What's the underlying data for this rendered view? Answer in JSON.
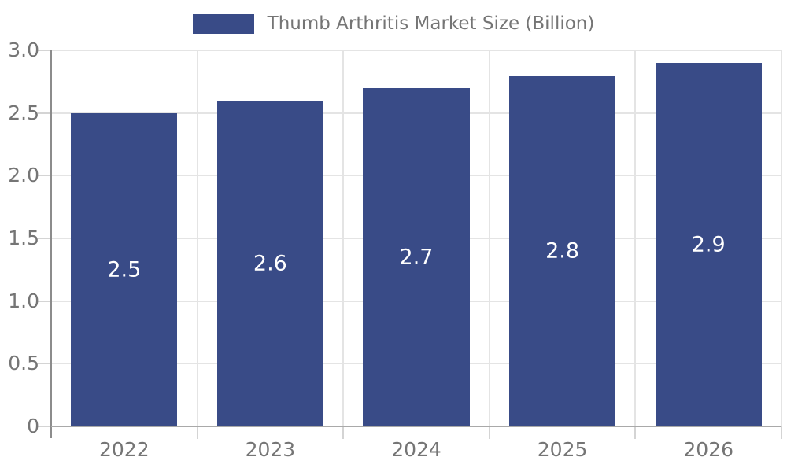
{
  "chart_data": {
    "type": "bar",
    "title": "",
    "legend_label": "Thumb Arthritis Market Size (Billion)",
    "legend_position": "top-center",
    "categories": [
      "2022",
      "2023",
      "2024",
      "2025",
      "2026"
    ],
    "values": [
      2.5,
      2.6,
      2.7,
      2.8,
      2.9
    ],
    "value_labels": [
      "2.5",
      "2.6",
      "2.7",
      "2.8",
      "2.9"
    ],
    "xlabel": "",
    "ylabel": "",
    "ylim": [
      0,
      3.0
    ],
    "y_tick_step": 0.5,
    "y_tick_labels": [
      "0",
      "0.5",
      "1.0",
      "1.5",
      "2.0",
      "2.5",
      "3.0"
    ],
    "grid": true,
    "colors": {
      "bar_fill": "#394b87",
      "grid": "#e4e4e4",
      "y_axis": "#8c8c8c",
      "x_axis": "#a9a9a9",
      "tick": "#d4d4d4",
      "tick_text": "#757575",
      "bar_label_text": "#ffffff",
      "background": "#ffffff"
    }
  }
}
